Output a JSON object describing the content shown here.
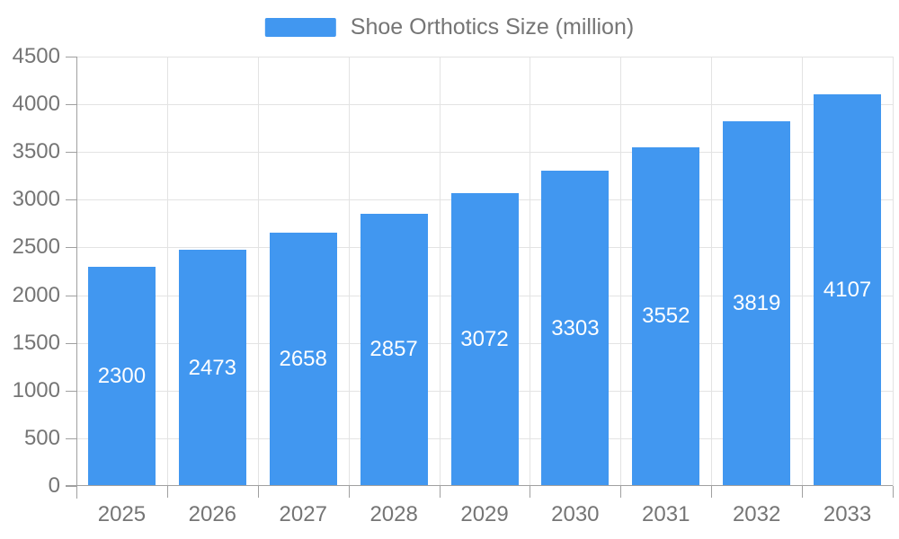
{
  "legend": {
    "label": "Shoe Orthotics Size (million)"
  },
  "colors": {
    "background": "#FFFFFF",
    "bar": "#4197F0",
    "grid": "#E3E3E3",
    "axis": "#A0A0A0",
    "text": "#757575",
    "value_label": "#FFFFFF"
  },
  "chart_data": {
    "type": "bar",
    "title": "Shoe Orthotics Size (million)",
    "categories": [
      "2025",
      "2026",
      "2027",
      "2028",
      "2029",
      "2030",
      "2031",
      "2032",
      "2033"
    ],
    "values": [
      2300,
      2473,
      2658,
      2857,
      3072,
      3303,
      3552,
      3819,
      4107
    ],
    "xlabel": "",
    "ylabel": "",
    "ylim": [
      0,
      4500
    ],
    "ytick_step": 500,
    "yticks": [
      0,
      500,
      1000,
      1500,
      2000,
      2500,
      3000,
      3500,
      4000,
      4500
    ],
    "grid": true,
    "legend_position": "top",
    "value_labels": "inside-center"
  }
}
